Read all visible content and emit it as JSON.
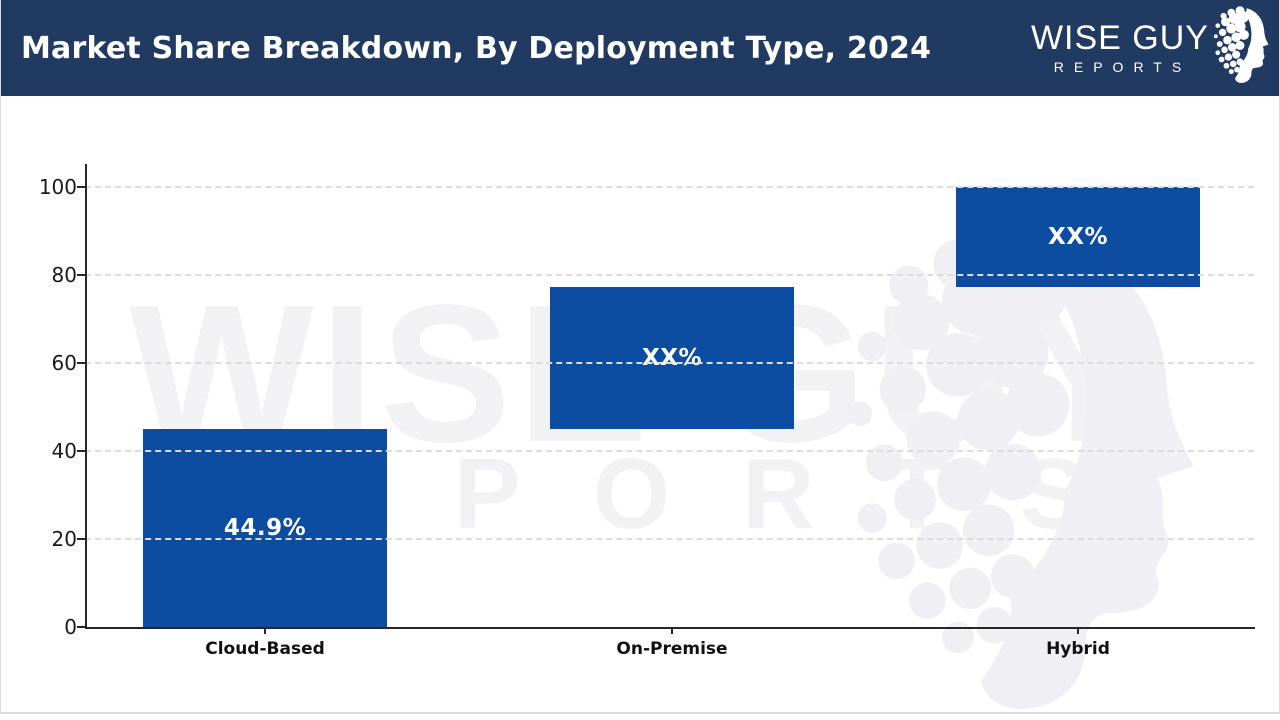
{
  "header": {
    "title": "Market Share Breakdown, By Deployment Type, 2024",
    "logo": {
      "line1": "WISE GUY",
      "line2": "REPORTS",
      "icon": "dotted-face-profile"
    }
  },
  "watermark": {
    "line1": "WISE GUY",
    "line2": "REPORTS",
    "icon": "dotted-face-profile"
  },
  "chart_data": {
    "type": "bar",
    "variant": "floating-segment-breakdown",
    "title": "Market Share Breakdown, By Deployment Type, 2024",
    "categories": [
      "Cloud-Based",
      "On-Premise",
      "Hybrid"
    ],
    "segments": [
      {
        "category": "Cloud-Based",
        "start": 0,
        "end": 44.9,
        "label": "44.9%"
      },
      {
        "category": "On-Premise",
        "start": 44.9,
        "end": 77.3,
        "label": "XX%"
      },
      {
        "category": "Hybrid",
        "start": 77.3,
        "end": 100,
        "label": "XX%"
      }
    ],
    "ylim": [
      0,
      100
    ],
    "yticks": [
      0,
      20,
      40,
      60,
      80,
      100
    ],
    "xlabel": "",
    "ylabel": "",
    "grid": "horizontal dashed, drawn over bars",
    "legend": "none",
    "colors": {
      "bar": "#0c4da2",
      "bar_label": "#ffffff",
      "header_background": "#203a61",
      "axis": "#262626",
      "grid_line": "#dcdcdc",
      "tick_text": "#1a1a1a",
      "watermark": "#f2f2f5",
      "page_border": "#dcdcdc"
    }
  }
}
